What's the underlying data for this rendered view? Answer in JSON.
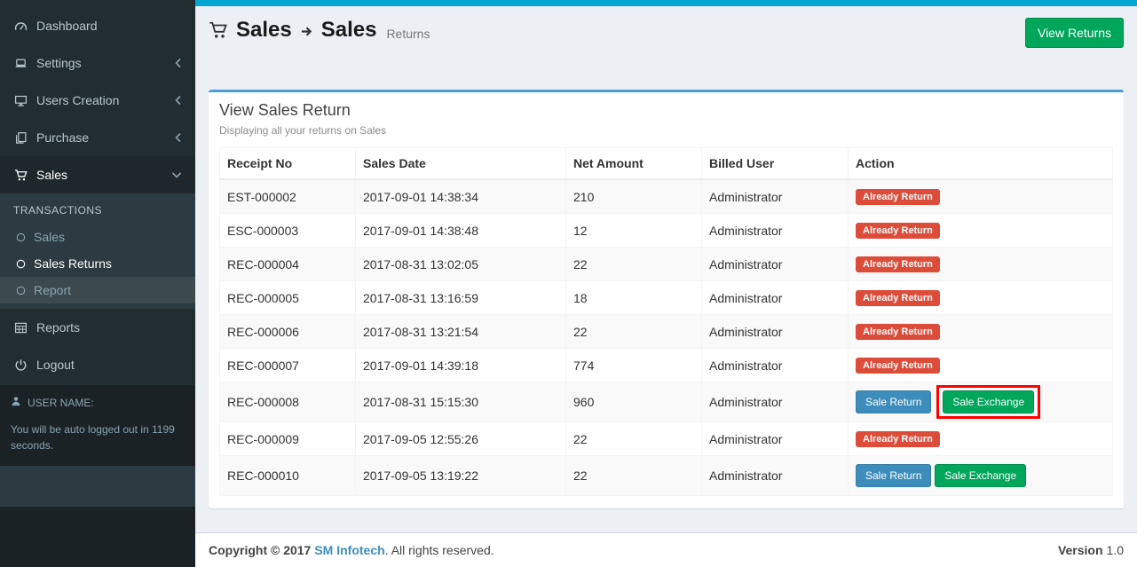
{
  "colors": {
    "topbar": "#00a7d0",
    "sidebar_bg": "#222d32",
    "accent_blue": "#3c8dbc",
    "success_green": "#00a65a",
    "danger_red": "#dd4b39",
    "annotation_red": "#ff0000"
  },
  "sidebar": {
    "menu": [
      {
        "label": "Dashboard",
        "icon": "dashboard-icon"
      },
      {
        "label": "Settings",
        "icon": "laptop-icon"
      },
      {
        "label": "Users Creation",
        "icon": "desktop-icon"
      },
      {
        "label": "Purchase",
        "icon": "copy-icon"
      },
      {
        "label": "Sales",
        "icon": "cart-icon"
      }
    ],
    "transactions_header": "TRANSACTIONS",
    "sub_menu": [
      {
        "label": "Sales"
      },
      {
        "label": "Sales Returns"
      },
      {
        "label": "Report"
      }
    ],
    "reports_label": "Reports",
    "logout_label": "Logout",
    "user_label": "USER NAME:",
    "auto_logout_notice": "You will be auto logged out in 1199 seconds."
  },
  "header": {
    "breadcrumb_primary": "Sales",
    "breadcrumb_secondary": "Sales",
    "breadcrumb_sub": "Returns",
    "view_returns_button": "View Returns"
  },
  "panel": {
    "title": "View Sales Return",
    "subtitle": "Displaying all your returns on Sales"
  },
  "table": {
    "columns": [
      "Receipt No",
      "Sales Date",
      "Net Amount",
      "Billed User",
      "Action"
    ],
    "rows": [
      {
        "receipt_no": "EST-000002",
        "sales_date": "2017-09-01 14:38:34",
        "net_amount": "210",
        "billed_user": "Administrator",
        "actions": [
          {
            "label": "Already Return",
            "type": "danger"
          }
        ]
      },
      {
        "receipt_no": "ESC-000003",
        "sales_date": "2017-09-01 14:38:48",
        "net_amount": "12",
        "billed_user": "Administrator",
        "actions": [
          {
            "label": "Already Return",
            "type": "danger"
          }
        ]
      },
      {
        "receipt_no": "REC-000004",
        "sales_date": "2017-08-31 13:02:05",
        "net_amount": "22",
        "billed_user": "Administrator",
        "actions": [
          {
            "label": "Already Return",
            "type": "danger"
          }
        ]
      },
      {
        "receipt_no": "REC-000005",
        "sales_date": "2017-08-31 13:16:59",
        "net_amount": "18",
        "billed_user": "Administrator",
        "actions": [
          {
            "label": "Already Return",
            "type": "danger"
          }
        ]
      },
      {
        "receipt_no": "REC-000006",
        "sales_date": "2017-08-31 13:21:54",
        "net_amount": "22",
        "billed_user": "Administrator",
        "actions": [
          {
            "label": "Already Return",
            "type": "danger"
          }
        ]
      },
      {
        "receipt_no": "REC-000007",
        "sales_date": "2017-09-01 14:39:18",
        "net_amount": "774",
        "billed_user": "Administrator",
        "actions": [
          {
            "label": "Already Return",
            "type": "danger"
          }
        ]
      },
      {
        "receipt_no": "REC-000008",
        "sales_date": "2017-08-31 15:15:30",
        "net_amount": "960",
        "billed_user": "Administrator",
        "actions": [
          {
            "label": "Sale Return",
            "type": "primary"
          },
          {
            "label": "Sale Exchange",
            "type": "success",
            "highlighted": true
          }
        ]
      },
      {
        "receipt_no": "REC-000009",
        "sales_date": "2017-09-05 12:55:26",
        "net_amount": "22",
        "billed_user": "Administrator",
        "actions": [
          {
            "label": "Already Return",
            "type": "danger"
          }
        ]
      },
      {
        "receipt_no": "REC-000010",
        "sales_date": "2017-09-05 13:19:22",
        "net_amount": "22",
        "billed_user": "Administrator",
        "actions": [
          {
            "label": "Sale Return",
            "type": "primary"
          },
          {
            "label": "Sale Exchange",
            "type": "success"
          }
        ]
      }
    ]
  },
  "footer": {
    "copyright_prefix": "Copyright © 2017",
    "company": "SM Infotech",
    "copyright_suffix": ". All rights reserved.",
    "version_label": "Version",
    "version_value": "1.0"
  }
}
